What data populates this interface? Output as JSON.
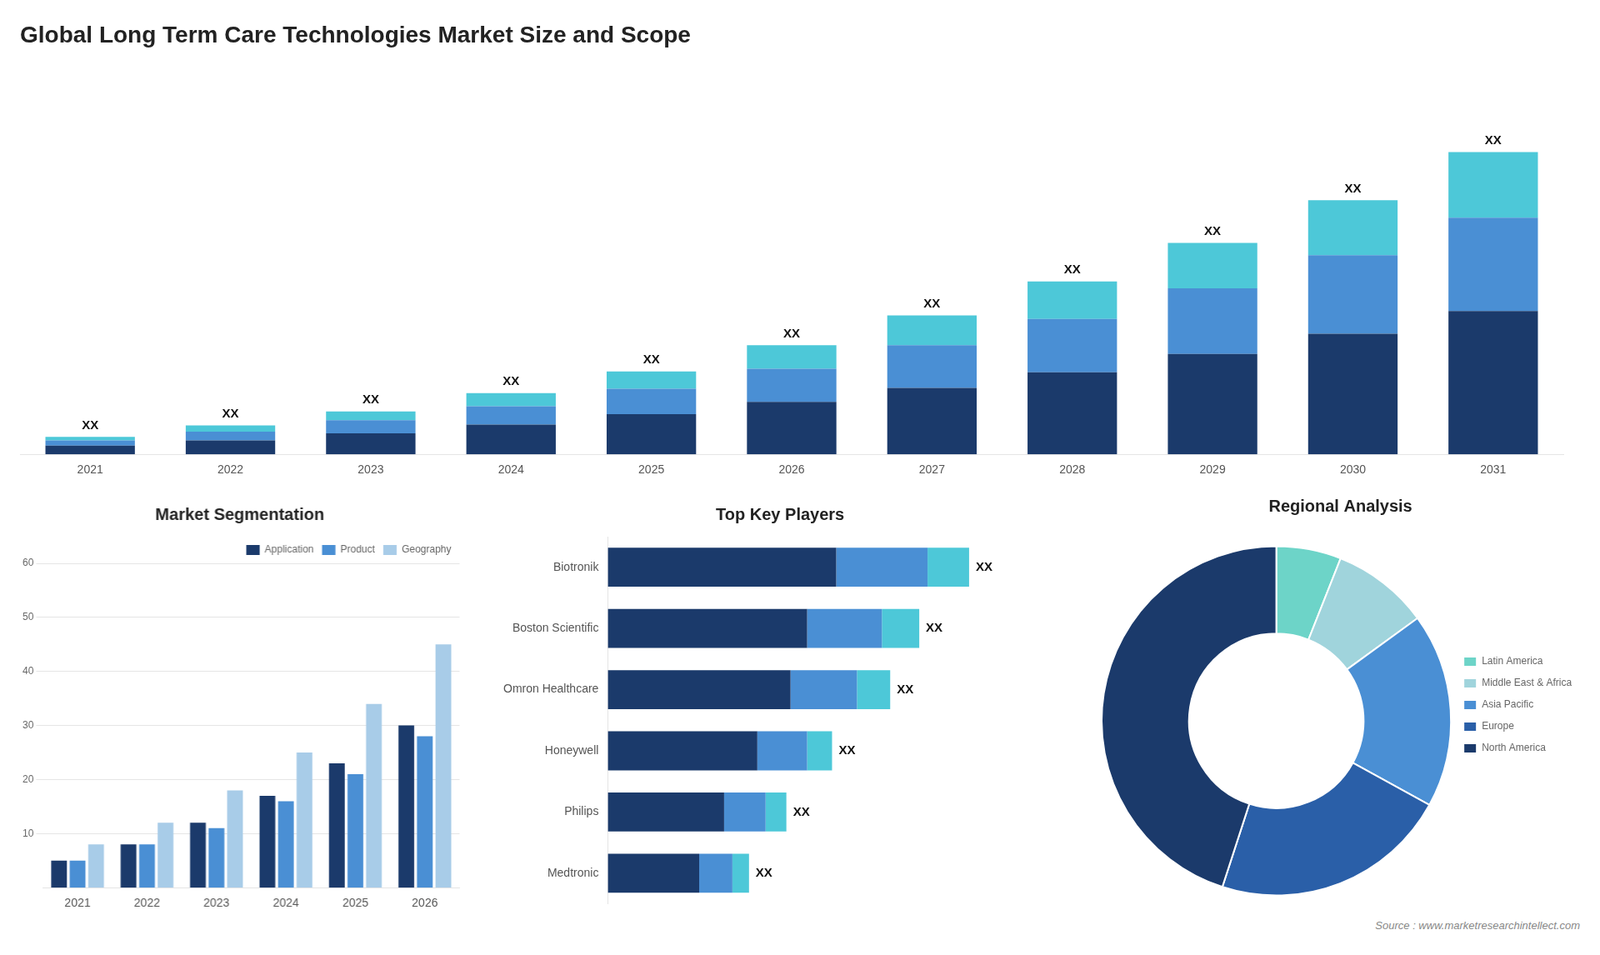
{
  "chart_data": [
    {
      "type": "bar",
      "title": "Global Long Term Care Technologies Market Size and Scope",
      "categories": [
        "2021",
        "2022",
        "2023",
        "2024",
        "2025",
        "2026",
        "2027",
        "2028",
        "2029",
        "2030",
        "2031"
      ],
      "series": [
        {
          "color": "#1b3a6b",
          "values": [
            1.0,
            1.6,
            2.4,
            3.4,
            4.6,
            6.0,
            7.6,
            9.4,
            11.5,
            13.8,
            16.4
          ]
        },
        {
          "color": "#4a8fd4",
          "values": [
            0.6,
            1.0,
            1.5,
            2.1,
            2.9,
            3.8,
            4.9,
            6.1,
            7.5,
            9.0,
            10.7
          ]
        },
        {
          "color": "#4dc8d8",
          "values": [
            0.4,
            0.7,
            1.0,
            1.5,
            2.0,
            2.7,
            3.4,
            4.3,
            5.2,
            6.3,
            7.5
          ]
        }
      ],
      "stacked": true,
      "ylim": [
        0,
        45
      ],
      "grid": false,
      "tick_labels": "x",
      "annotations": [
        {
          "category": "2021",
          "text": "XX"
        },
        {
          "category": "2022",
          "text": "XX"
        },
        {
          "category": "2023",
          "text": "XX"
        },
        {
          "category": "2024",
          "text": "XX"
        },
        {
          "category": "2025",
          "text": "XX"
        },
        {
          "category": "2026",
          "text": "XX"
        },
        {
          "category": "2027",
          "text": "XX"
        },
        {
          "category": "2028",
          "text": "XX"
        },
        {
          "category": "2029",
          "text": "XX"
        },
        {
          "category": "2030",
          "text": "XX"
        },
        {
          "category": "2031",
          "text": "XX"
        }
      ]
    },
    {
      "type": "bar",
      "title": "Market Segmentation",
      "categories": [
        "2021",
        "2022",
        "2023",
        "2024",
        "2025",
        "2026"
      ],
      "series": [
        {
          "name": "Application",
          "color": "#1b3a6b",
          "values": [
            5,
            8,
            12,
            17,
            23,
            30
          ]
        },
        {
          "name": "Product",
          "color": "#4a8fd4",
          "values": [
            5,
            8,
            11,
            16,
            21,
            28
          ]
        },
        {
          "name": "Geography",
          "color": "#a8cce8",
          "values": [
            8,
            12,
            18,
            25,
            34,
            45
          ]
        }
      ],
      "ylim": [
        0,
        60
      ],
      "yticks": [
        10,
        20,
        30,
        40,
        50,
        60
      ],
      "grid": true,
      "legend": "upper right"
    },
    {
      "type": "bar",
      "orientation": "horizontal",
      "stacked": true,
      "title": "Top Key Players",
      "categories": [
        "Biotronik",
        "Boston Scientific",
        "Omron Healthcare",
        "Honeywell",
        "Philips",
        "Medtronic"
      ],
      "series": [
        {
          "color": "#1b3a6b",
          "values": [
            0.55,
            0.48,
            0.44,
            0.36,
            0.28,
            0.22
          ]
        },
        {
          "color": "#4a8fd4",
          "values": [
            0.22,
            0.18,
            0.16,
            0.12,
            0.1,
            0.08
          ]
        },
        {
          "color": "#4dc8d8",
          "values": [
            0.1,
            0.09,
            0.08,
            0.06,
            0.05,
            0.04
          ]
        }
      ],
      "xlim": [
        0,
        1.0875
      ],
      "grid": false,
      "tick_labels": "y",
      "annotations": [
        {
          "category": "Biotronik",
          "text": "XX"
        },
        {
          "category": "Boston Scientific",
          "text": "XX"
        },
        {
          "category": "Omron Healthcare",
          "text": "XX"
        },
        {
          "category": "Honeywell",
          "text": "XX"
        },
        {
          "category": "Philips",
          "text": "XX"
        },
        {
          "category": "Medtronic",
          "text": "XX"
        }
      ]
    },
    {
      "type": "doughnut",
      "title": "Regional Analysis",
      "categories": [
        "Latin America",
        "Middle East &\nAfrica",
        "Asia Pacific",
        "Europe",
        "North America"
      ],
      "values": [
        6,
        9,
        18,
        22,
        45
      ],
      "colors": [
        "#6dd4c8",
        "#a0d4dc",
        "#4a8fd4",
        "#2a5fa8",
        "#1b3a6b"
      ],
      "legend": "right",
      "annotations": [
        {
          "text": "Source : www.marketresearchintellect.com"
        }
      ]
    }
  ]
}
